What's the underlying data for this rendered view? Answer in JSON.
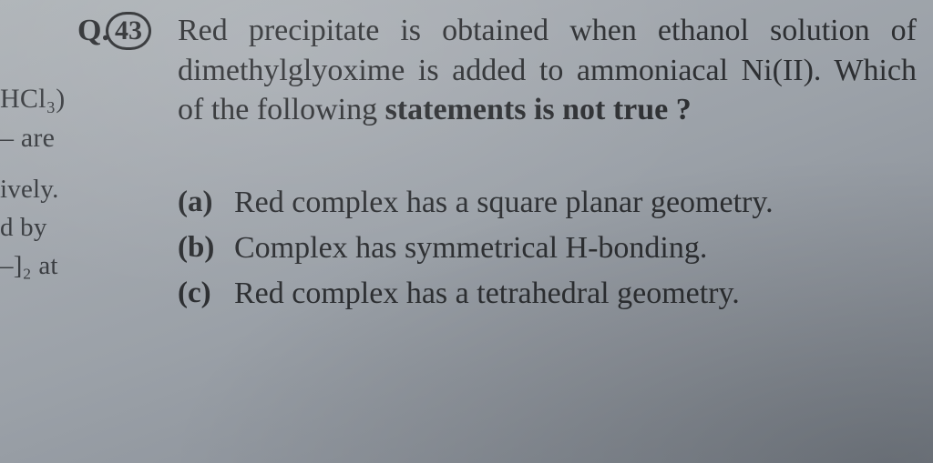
{
  "colors": {
    "text": "#2d2f32",
    "bg_start": "#aeb3b7",
    "bg_end": "#7e858e",
    "circle_border": "#2e3033"
  },
  "typography": {
    "stem_fontsize_pt": 25,
    "option_fontsize_pt": 25,
    "label_weight": 700,
    "family": "Georgia / serif"
  },
  "left_fragments": {
    "f1": "HCl₃)",
    "f2": "– are",
    "f3": "ively.",
    "f4": "d by",
    "f5": "–]₂ at"
  },
  "question": {
    "prefix": "Q.",
    "number": "43",
    "stem_line": "Red precipitate is obtained when ethanol solution of dimethylglyoxime is added to ammoniacal Ni(II). Which of the following ",
    "stem_bold_tail": "statements is not true ?"
  },
  "options": {
    "a": {
      "label": "(a)",
      "text": "Red complex has a square planar geometry."
    },
    "b": {
      "label": "(b)",
      "text": "Complex has symmetrical H-bonding."
    },
    "c": {
      "label": "(c)",
      "text": "Red complex has a tetrahedral geometry."
    }
  }
}
